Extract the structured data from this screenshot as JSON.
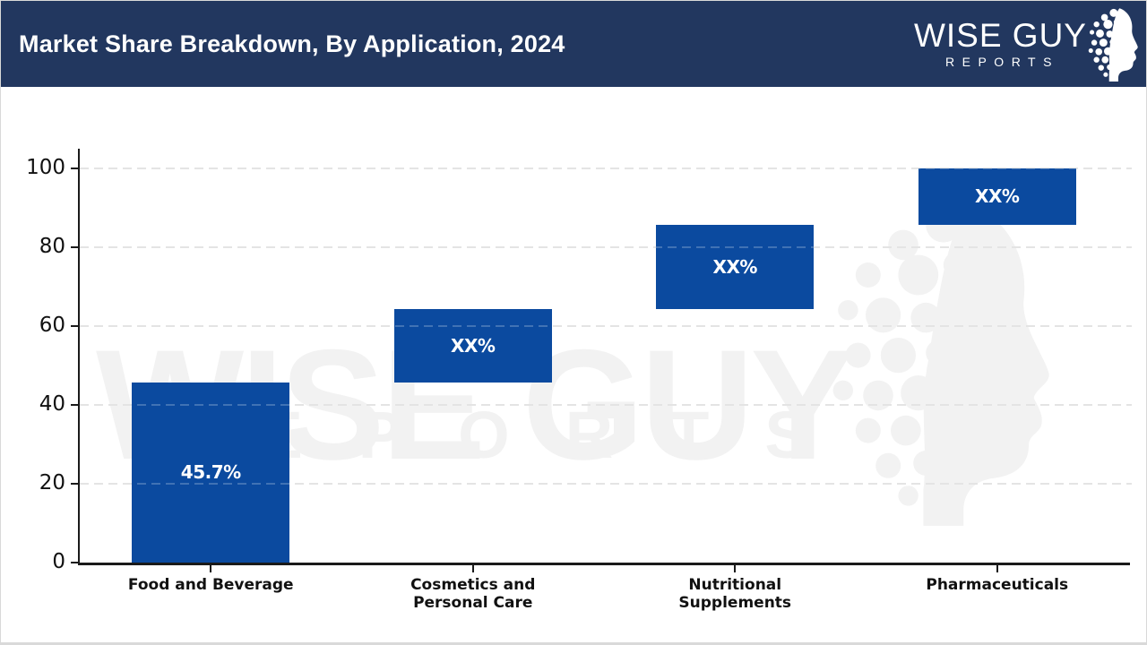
{
  "header": {
    "title": "Market Share Breakdown, By Application, 2024",
    "logo": {
      "line1": "WISE GUY",
      "line2": "REPORTS"
    }
  },
  "watermark": {
    "line1": "WISE GUY",
    "line2": "REPORTS"
  },
  "colors": {
    "header_bg": "#22375F",
    "bar": "#0B4A9F",
    "watermark": "#F2F2F2",
    "grid": "#DCDCDC",
    "axis": "#1A1A1A",
    "text": "#111111",
    "bar_label": "#FFFFFF",
    "border": "#D9D9D9"
  },
  "chart_data": {
    "type": "bar",
    "subtype": "waterfall",
    "title": "Market Share Breakdown, By Application, 2024",
    "categories": [
      "Food and Beverage",
      "Cosmetics and\nPersonal Care",
      "Nutritional\nSupplements",
      "Pharmaceuticals"
    ],
    "series": [
      {
        "name": "Market Share (%)",
        "segments": [
          {
            "category": "Food and Beverage",
            "start": 0,
            "end": 45.7,
            "label": "45.7%"
          },
          {
            "category": "Cosmetics and Personal Care",
            "start": 45.7,
            "end": 64.3,
            "label": "XX%"
          },
          {
            "category": "Nutritional Supplements",
            "start": 64.3,
            "end": 85.7,
            "label": "XX%"
          },
          {
            "category": "Pharmaceuticals",
            "start": 85.7,
            "end": 100,
            "label": "XX%"
          }
        ]
      }
    ],
    "xlabel": "",
    "ylabel": "",
    "ylim": [
      0,
      105
    ],
    "yticks": [
      0,
      20,
      40,
      60,
      80,
      100
    ],
    "grid": "horizontal-dashed",
    "legend": "none"
  }
}
